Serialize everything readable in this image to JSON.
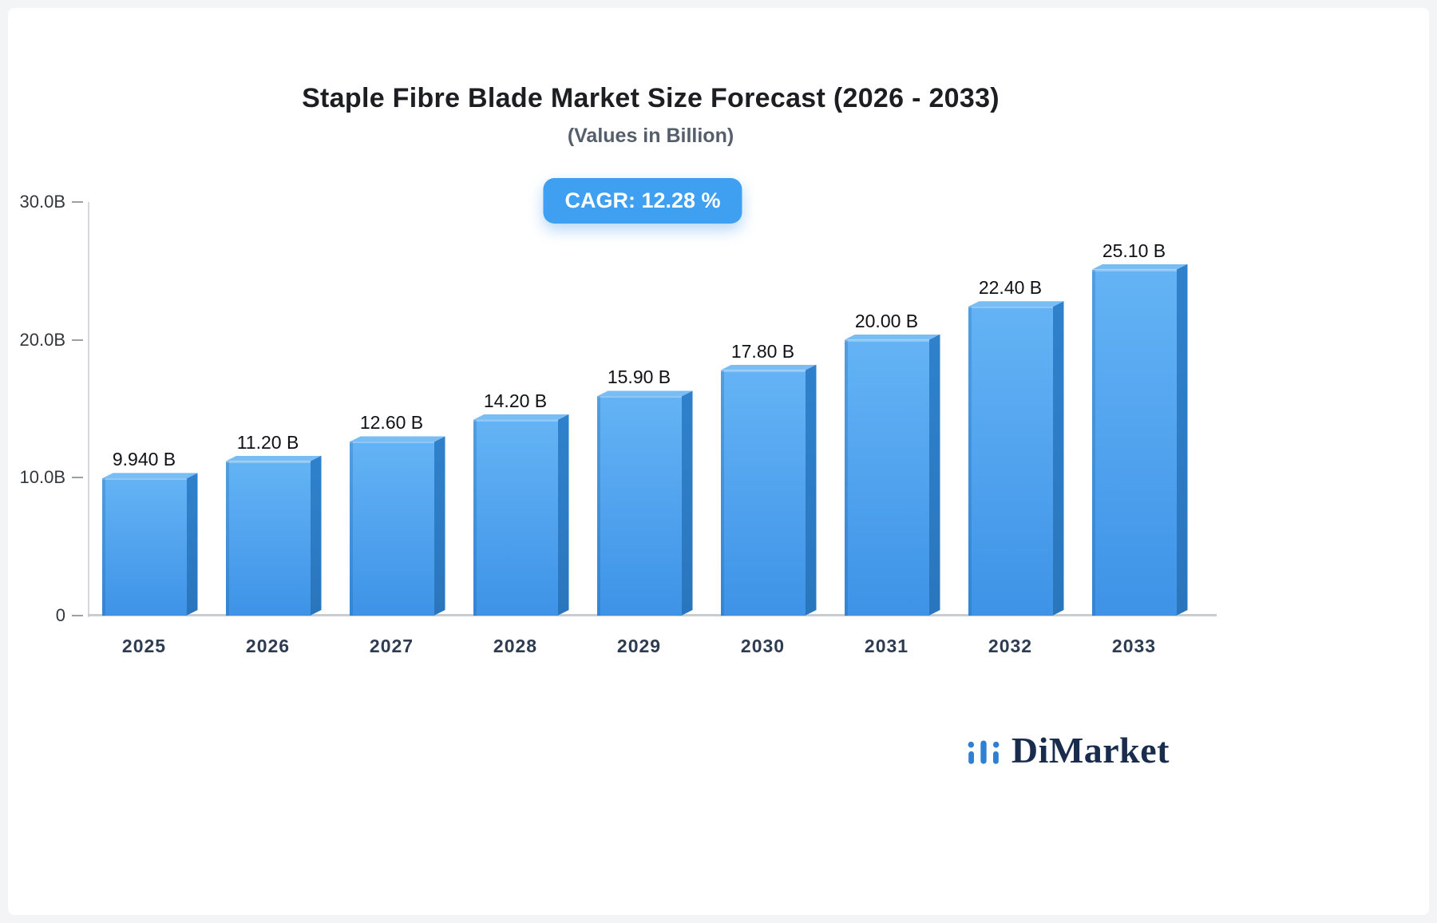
{
  "title": "Staple Fibre Blade Market Size Forecast (2026 - 2033)",
  "subtitle": "(Values in Billion)",
  "badge": {
    "label": "CAGR: 12.28 %"
  },
  "chart_data": {
    "type": "bar",
    "title": "Staple Fibre Blade Market Size Forecast (2026 - 2033)",
    "subtitle": "(Values in Billion)",
    "categories": [
      "2025",
      "2026",
      "2027",
      "2028",
      "2029",
      "2030",
      "2031",
      "2032",
      "2033"
    ],
    "values": [
      9.94,
      11.2,
      12.6,
      14.2,
      15.9,
      17.8,
      20.0,
      22.4,
      25.1
    ],
    "value_labels": [
      "9.940 B",
      "11.20 B",
      "12.60 B",
      "14.20 B",
      "15.90 B",
      "17.80 B",
      "20.00 B",
      "22.40 B",
      "25.10 B"
    ],
    "ylim": [
      0,
      30
    ],
    "yticks": [
      0,
      10,
      20,
      30
    ],
    "ytick_labels": [
      "0",
      "10.0B",
      "20.0B",
      "30.0B"
    ],
    "xlabel": "",
    "ylabel": "",
    "grid": false,
    "legend": null,
    "colors": {
      "bar_gradient_top": "#64b3f5",
      "bar_gradient_bottom": "#3e93e7",
      "bar_side": "#2b7ac4",
      "badge_background": "#3f9ff0",
      "axis_line": "#c9cdd2",
      "value_label": "#0e1116",
      "year_label": "#2e3c52"
    }
  },
  "logo": {
    "brand": "DiMarket",
    "icon": "bar-chart-icon",
    "brand_color": "#1a2c4e",
    "icon_color": "#2e80d4"
  }
}
